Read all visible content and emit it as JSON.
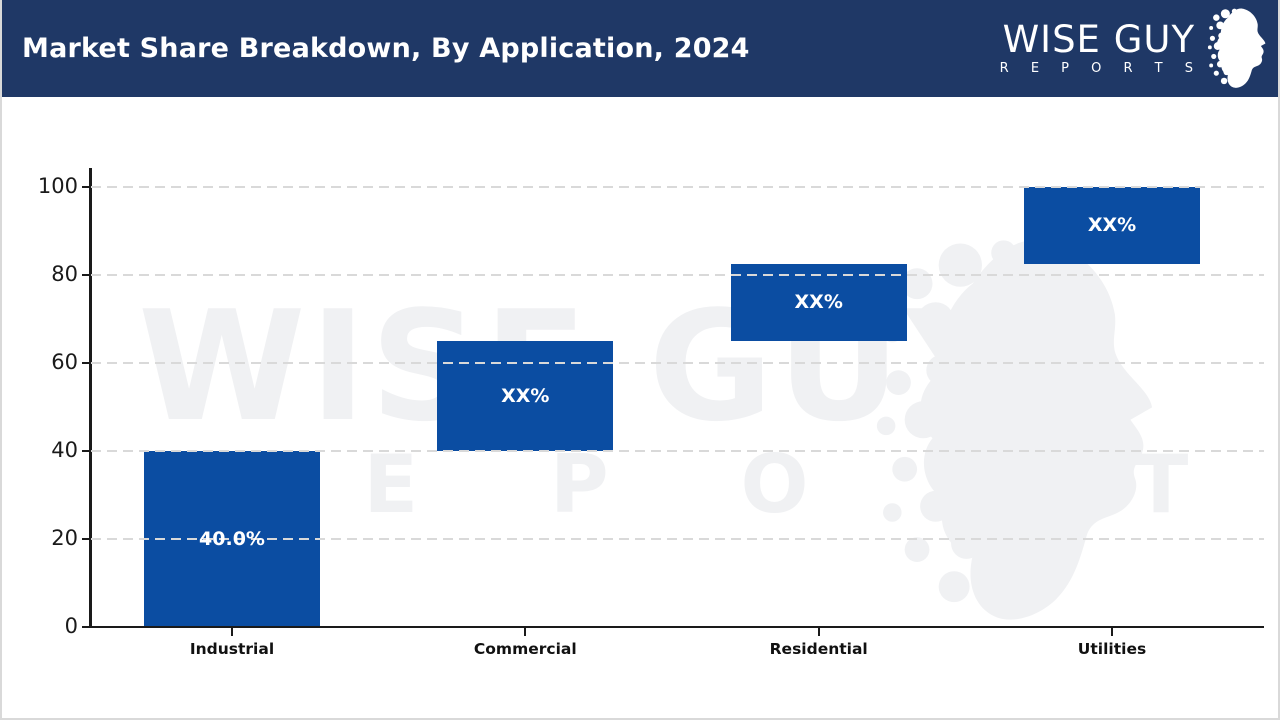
{
  "header": {
    "title": "Market Share Breakdown, By Application, 2024",
    "logo": {
      "line1": "WISE GUY",
      "line2": "R E P O R T S"
    }
  },
  "watermark": {
    "line1": "WISE GUY",
    "line2": "R E P O R T S"
  },
  "colors": {
    "header_bg": "#1f3866",
    "title_text": "#ffffff",
    "bar": "#0b4da2",
    "bar_label": "#ffffff",
    "grid": "#d9d9d9",
    "axis": "#1a1a1a",
    "watermark": "#f0f1f3"
  },
  "chart_data": {
    "type": "bar",
    "subtype": "waterfall",
    "title": "Market Share Breakdown, By Application, 2024",
    "categories": [
      "Industrial",
      "Commercial",
      "Residential",
      "Utilities"
    ],
    "series": [
      {
        "name": "Market Share (%)",
        "segments": [
          {
            "category": "Industrial",
            "start": 0,
            "end": 40,
            "value": 40,
            "label": "40.0%"
          },
          {
            "category": "Commercial",
            "start": 40,
            "end": 65,
            "value": 25,
            "label": "XX%"
          },
          {
            "category": "Residential",
            "start": 65,
            "end": 82.5,
            "value": 17.5,
            "label": "XX%"
          },
          {
            "category": "Utilities",
            "start": 82.5,
            "end": 100,
            "value": 17.5,
            "label": "XX%"
          }
        ]
      }
    ],
    "xlabel": "",
    "ylabel": "",
    "ylim": [
      0,
      100
    ],
    "yticks": [
      0,
      20,
      40,
      60,
      80,
      100
    ],
    "grid": "horizontal-dashed",
    "legend": "none"
  }
}
